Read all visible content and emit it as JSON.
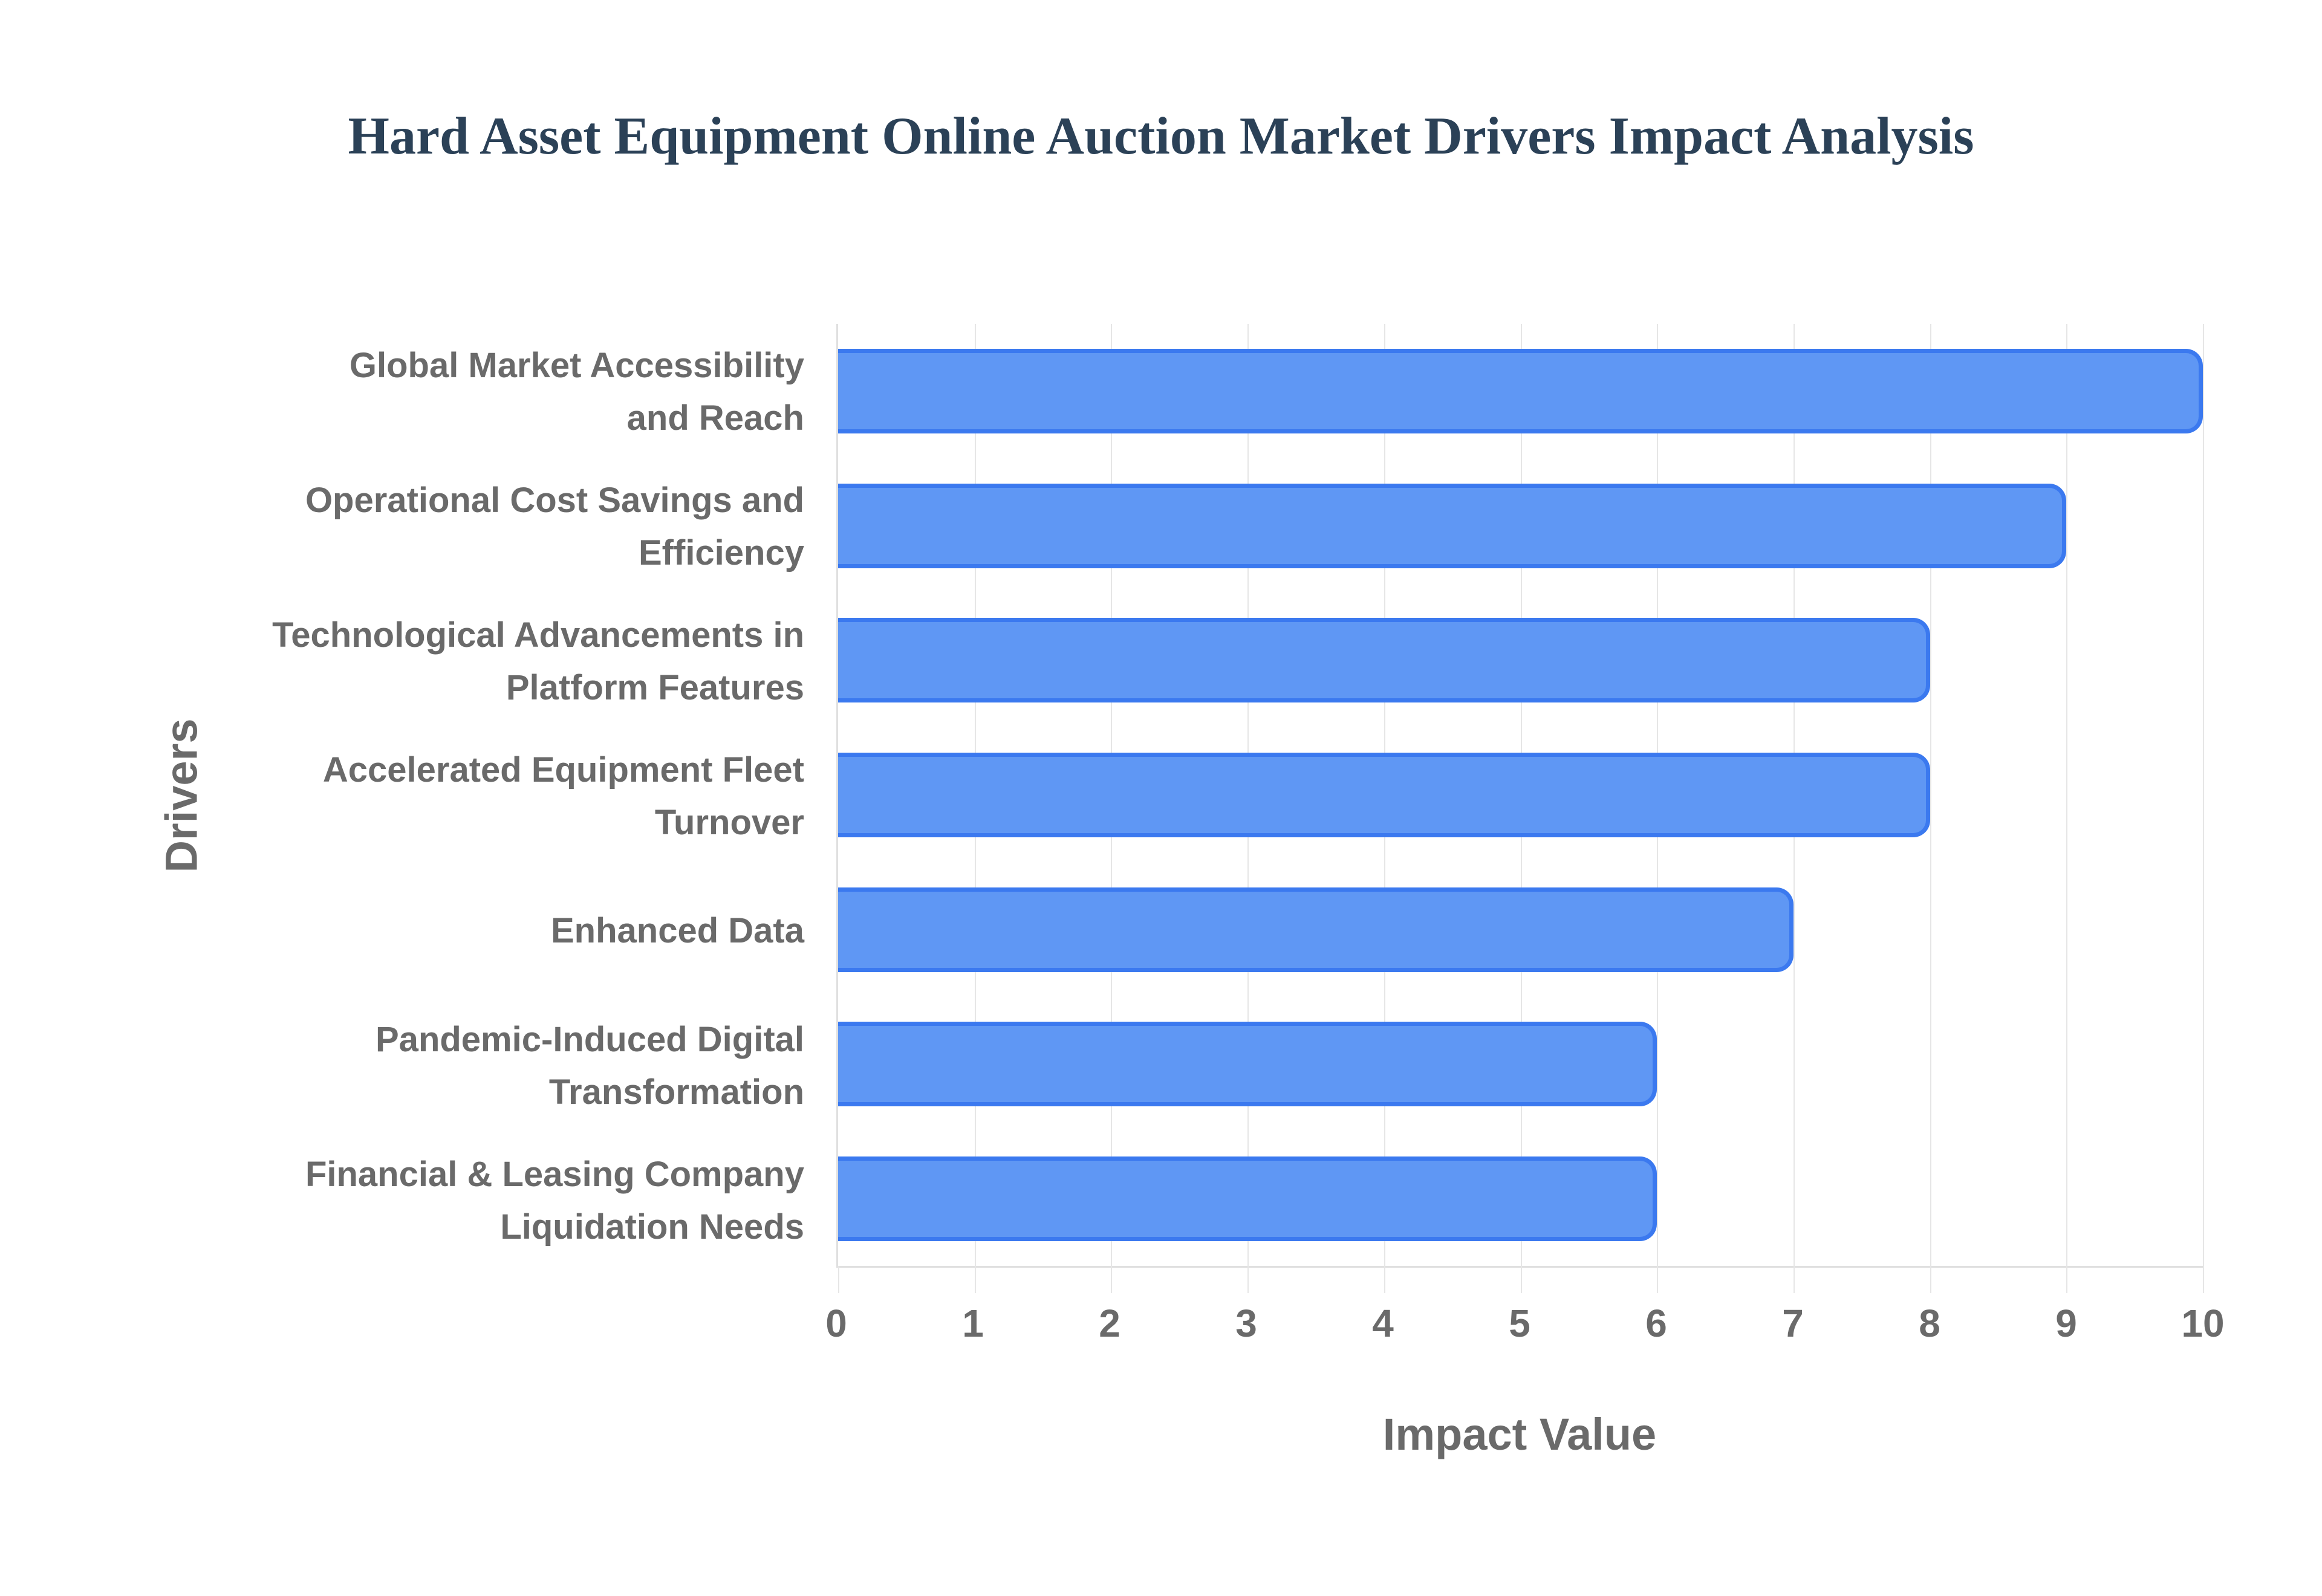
{
  "title": "Hard Asset Equipment Online Auction Market Drivers Impact Analysis",
  "colors": {
    "background": "#ffffff",
    "title": "#2b4157",
    "label": "#6a6a6a",
    "bar_fill": "#5f97f4",
    "bar_border": "#3b79ef",
    "gridline": "#e6e6e6",
    "axis_line": "#e0e0e0"
  },
  "chart_data": {
    "type": "bar",
    "orientation": "horizontal",
    "title": "Hard Asset Equipment Online Auction Market Drivers Impact Analysis",
    "categories": [
      "Global Market Accessibility and Reach",
      "Operational Cost Savings and Efficiency",
      "Technological Advancements in Platform Features",
      "Accelerated Equipment Fleet Turnover",
      "Enhanced Data",
      "Pandemic-Induced Digital Transformation",
      "Financial & Leasing Company Liquidation Needs"
    ],
    "category_lines": [
      [
        "Global Market Accessibility",
        "and Reach"
      ],
      [
        "Operational Cost Savings and",
        "Efficiency"
      ],
      [
        "Technological Advancements in",
        "Platform Features"
      ],
      [
        "Accelerated Equipment Fleet",
        "Turnover"
      ],
      [
        "Enhanced Data"
      ],
      [
        "Pandemic-Induced Digital",
        "Transformation"
      ],
      [
        "Financial & Leasing Company",
        "Liquidation Needs"
      ]
    ],
    "values": [
      10,
      9,
      8,
      8,
      7,
      6,
      6
    ],
    "xlabel": "Impact Value",
    "ylabel": "Drivers",
    "xlim": [
      0,
      10
    ],
    "x_ticks": [
      0,
      1,
      2,
      3,
      4,
      5,
      6,
      7,
      8,
      9,
      10
    ],
    "grid": "vertical",
    "legend": "none",
    "data_labels": "none"
  }
}
